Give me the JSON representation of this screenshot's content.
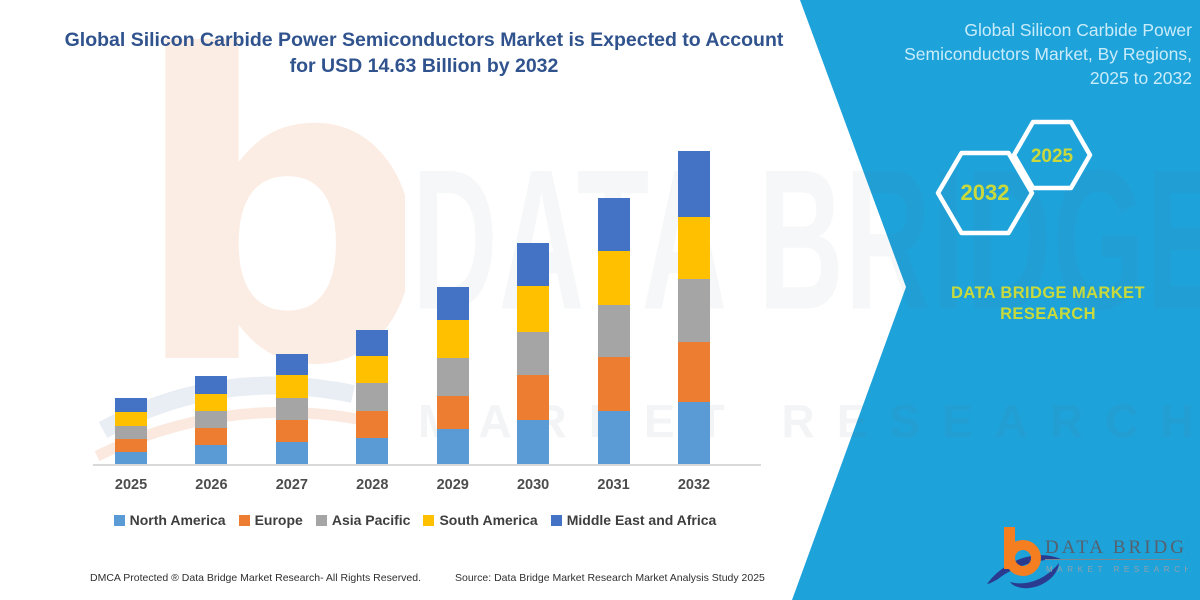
{
  "header": {
    "title": "Global Silicon Carbide Power Semiconductors Market is Expected to Account\nfor USD 14.63 Billion by 2032",
    "title_color": "#30538E"
  },
  "chart_data": {
    "type": "bar",
    "subtype": "stacked-vertical",
    "title": "Global Silicon Carbide Power Semiconductors Market is Expected to Account for USD 14.63 Billion by 2032",
    "unit": "USD Billion",
    "categories": [
      "2025",
      "2026",
      "2027",
      "2028",
      "2029",
      "2030",
      "2031",
      "2032"
    ],
    "series": [
      {
        "name": "North America",
        "color": "#5B9BD5",
        "values": [
          0.56,
          0.89,
          1.03,
          1.21,
          1.63,
          2.05,
          2.47,
          2.89
        ]
      },
      {
        "name": "Europe",
        "color": "#ED7D31",
        "values": [
          0.61,
          0.79,
          1.03,
          1.26,
          1.54,
          2.1,
          2.52,
          2.8
        ]
      },
      {
        "name": "Asia Pacific",
        "color": "#A5A5A5",
        "values": [
          0.61,
          0.79,
          1.03,
          1.3,
          1.77,
          2.0,
          2.42,
          2.98
        ]
      },
      {
        "name": "South America",
        "color": "#FFC000",
        "values": [
          0.65,
          0.79,
          1.07,
          1.26,
          1.77,
          2.19,
          2.56,
          2.89
        ]
      },
      {
        "name": "Middle East and Africa",
        "color": "#4472C4",
        "values": [
          0.65,
          0.84,
          0.98,
          1.21,
          1.54,
          2.0,
          2.47,
          3.07
        ]
      }
    ],
    "totals": [
      3.08,
      4.1,
      5.14,
      6.24,
      8.25,
      10.34,
      12.44,
      14.63
    ],
    "ylim": [
      0,
      16
    ],
    "grid": "off",
    "y_axis_shown": false,
    "legend_position": "bottom"
  },
  "footer": {
    "dmca": "DMCA Protected ® Data Bridge Market Research-  All Rights Reserved.",
    "source": "Source: Data Bridge Market Research  Market Analysis Study 2025"
  },
  "side_panel": {
    "title": "Global Silicon Carbide Power\nSemiconductors Market, By Regions,\n2025 to 2032",
    "hexagon_back_label": "2032",
    "hexagon_front_label": "2025",
    "brand_text": "DATA BRIDGE MARKET\nRESEARCH",
    "teal": "#1EA2DA",
    "lime": "#C8DA3B"
  },
  "logo": {
    "name": "DATA BRIDGE",
    "subtitle": "MARKET RESEARCH",
    "orange": "#F57E20",
    "navy": "#2A3B8F"
  },
  "watermarks": {
    "big_text": "DATA BRIDGE",
    "sub_text": "MARKET RESEARCH",
    "letter_b": "b"
  }
}
